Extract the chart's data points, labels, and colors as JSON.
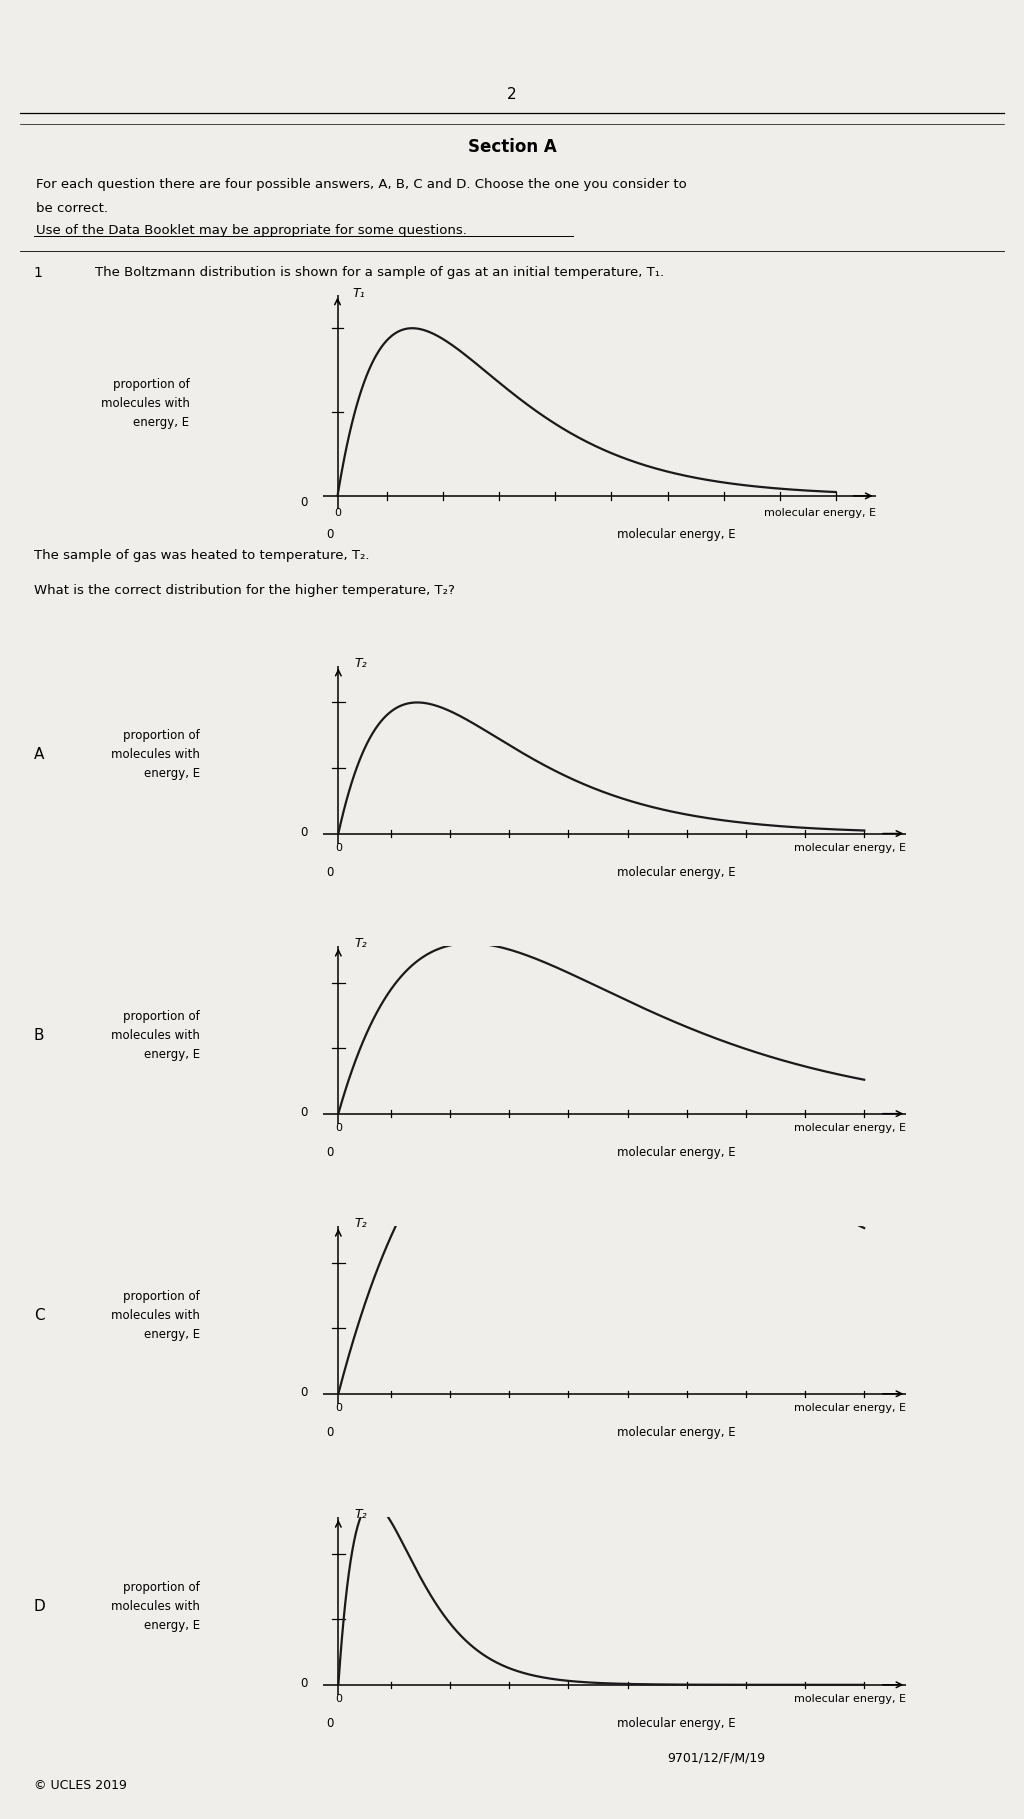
{
  "page_number": "2",
  "section": "Section A",
  "instruction1": "For each question there are four possible answers, A, B, C and D. Choose the one you consider to be correct.",
  "instruction2": "Use of the Data Booklet may be appropriate for some questions.",
  "question_number": "1",
  "question_text": "The Boltzmann distribution is shown for a sample of gas at an initial temperature, T₁.",
  "heating_text": "The sample of gas was heated to temperature, T₂.",
  "question2_text": "What is the correct distribution for the higher temperature, T₂?",
  "ylabel_text": "proportion of\nmolecules with\nenergy, E",
  "xlabel_text": "molecular energy, E",
  "T1_label": "T₁",
  "T2_label": "T₂",
  "options": [
    "A",
    "B",
    "C",
    "D"
  ],
  "footer_code": "9701/12/F/M/19",
  "footer_copyright": "© UCLES 2019",
  "paper_color": "#f0eeeb",
  "curve_color": "#1a1a1a"
}
